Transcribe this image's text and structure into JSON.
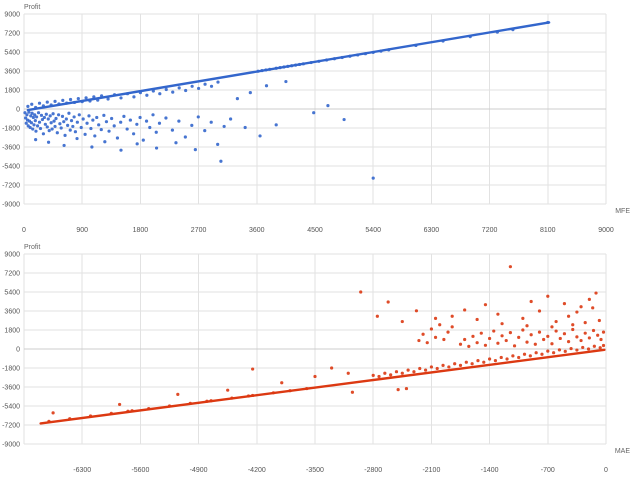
{
  "page": {
    "background": "#ffffff"
  },
  "chart_data": [
    {
      "type": "scatter",
      "title": "Profit",
      "xlabel": "MFE",
      "ylabel": "Profit",
      "color": "#3366cc",
      "grid": true,
      "xlim": [
        0,
        9000
      ],
      "ylim": [
        -9000,
        9000
      ],
      "x_ticks": [
        0,
        900,
        1800,
        2700,
        3600,
        4500,
        5400,
        6300,
        7200,
        8100,
        9000
      ],
      "x_grid_extra": [],
      "y_ticks": [
        9000,
        7200,
        5400,
        3600,
        1800,
        0,
        -1800,
        -3600,
        -5400,
        -7200,
        -9000
      ],
      "trend_line": [
        [
          60,
          -100
        ],
        [
          8120,
          8200
        ]
      ],
      "points": [
        [
          15,
          -350
        ],
        [
          25,
          -850
        ],
        [
          35,
          -1350
        ],
        [
          45,
          -550
        ],
        [
          55,
          -1050
        ],
        [
          65,
          -1600
        ],
        [
          75,
          -300
        ],
        [
          85,
          -1150
        ],
        [
          95,
          -1750
        ],
        [
          105,
          -650
        ],
        [
          115,
          -1300
        ],
        [
          125,
          -400
        ],
        [
          135,
          -1900
        ],
        [
          145,
          -800
        ],
        [
          155,
          -1500
        ],
        [
          165,
          -550
        ],
        [
          175,
          -1100
        ],
        [
          185,
          -2100
        ],
        [
          195,
          -750
        ],
        [
          210,
          -1600
        ],
        [
          225,
          -350
        ],
        [
          240,
          -1250
        ],
        [
          255,
          -1850
        ],
        [
          270,
          -600
        ],
        [
          285,
          -1000
        ],
        [
          300,
          -2350
        ],
        [
          315,
          -800
        ],
        [
          330,
          -1450
        ],
        [
          345,
          -500
        ],
        [
          360,
          -1700
        ],
        [
          375,
          -950
        ],
        [
          390,
          -2050
        ],
        [
          405,
          -650
        ],
        [
          420,
          -1300
        ],
        [
          435,
          -1900
        ],
        [
          450,
          -450
        ],
        [
          465,
          -1150
        ],
        [
          480,
          -1650
        ],
        [
          495,
          -900
        ],
        [
          515,
          -2250
        ],
        [
          535,
          -550
        ],
        [
          555,
          -1400
        ],
        [
          575,
          -1800
        ],
        [
          595,
          -700
        ],
        [
          615,
          -1200
        ],
        [
          635,
          -2500
        ],
        [
          655,
          -950
        ],
        [
          675,
          -1550
        ],
        [
          695,
          -400
        ],
        [
          715,
          -2000
        ],
        [
          735,
          -1100
        ],
        [
          755,
          -1650
        ],
        [
          775,
          -750
        ],
        [
          795,
          -2150
        ],
        [
          825,
          -1250
        ],
        [
          855,
          -550
        ],
        [
          885,
          -1750
        ],
        [
          915,
          -950
        ],
        [
          945,
          -2400
        ],
        [
          975,
          -1350
        ],
        [
          1005,
          -650
        ],
        [
          1035,
          -1850
        ],
        [
          1065,
          -1050
        ],
        [
          1095,
          -2550
        ],
        [
          1125,
          -800
        ],
        [
          1155,
          -1500
        ],
        [
          1195,
          -1950
        ],
        [
          1235,
          -600
        ],
        [
          1275,
          -1200
        ],
        [
          1315,
          -2100
        ],
        [
          1355,
          -900
        ],
        [
          1395,
          -1600
        ],
        [
          1445,
          -2750
        ],
        [
          1495,
          -1250
        ],
        [
          1545,
          -700
        ],
        [
          1595,
          -1900
        ],
        [
          1645,
          -1050
        ],
        [
          1695,
          -2350
        ],
        [
          1745,
          -1450
        ],
        [
          1795,
          -800
        ],
        [
          1845,
          -2950
        ],
        [
          1895,
          -1150
        ],
        [
          1945,
          -1750
        ],
        [
          1995,
          -550
        ],
        [
          2045,
          -2200
        ],
        [
          2095,
          -1350
        ],
        [
          2195,
          -850
        ],
        [
          2295,
          -2000
        ],
        [
          2395,
          -1150
        ],
        [
          2495,
          -2650
        ],
        [
          2595,
          -1550
        ],
        [
          2695,
          -750
        ],
        [
          2795,
          -2050
        ],
        [
          2895,
          -1250
        ],
        [
          2995,
          -3350
        ],
        [
          3045,
          -4950
        ],
        [
          3095,
          -1650
        ],
        [
          3195,
          -950
        ],
        [
          60,
          250
        ],
        [
          120,
          450
        ],
        [
          180,
          150
        ],
        [
          240,
          550
        ],
        [
          300,
          300
        ],
        [
          360,
          650
        ],
        [
          420,
          380
        ],
        [
          480,
          720
        ],
        [
          540,
          480
        ],
        [
          600,
          820
        ],
        [
          660,
          560
        ],
        [
          720,
          900
        ],
        [
          780,
          620
        ],
        [
          840,
          980
        ],
        [
          900,
          700
        ],
        [
          960,
          1060
        ],
        [
          1020,
          760
        ],
        [
          1080,
          1150
        ],
        [
          1140,
          840
        ],
        [
          1200,
          1250
        ],
        [
          1300,
          950
        ],
        [
          1400,
          1350
        ],
        [
          1500,
          1050
        ],
        [
          1600,
          1450
        ],
        [
          1700,
          1150
        ],
        [
          1800,
          1550
        ],
        [
          1900,
          1300
        ],
        [
          2000,
          1700
        ],
        [
          2100,
          1450
        ],
        [
          2200,
          1850
        ],
        [
          2300,
          1600
        ],
        [
          2400,
          2000
        ],
        [
          2500,
          1750
        ],
        [
          2600,
          2150
        ],
        [
          2700,
          1950
        ],
        [
          2800,
          2350
        ],
        [
          2900,
          2150
        ],
        [
          3000,
          2550
        ],
        [
          180,
          -2900
        ],
        [
          380,
          -3150
        ],
        [
          620,
          -3450
        ],
        [
          820,
          -2800
        ],
        [
          1050,
          -3600
        ],
        [
          1250,
          -3100
        ],
        [
          1500,
          -3900
        ],
        [
          1750,
          -3300
        ],
        [
          2050,
          -3700
        ],
        [
          2350,
          -3200
        ],
        [
          2650,
          -3850
        ],
        [
          3420,
          -1750
        ],
        [
          3650,
          -2550
        ],
        [
          3900,
          -1500
        ],
        [
          4480,
          -350
        ],
        [
          4700,
          320
        ],
        [
          4950,
          -1000
        ],
        [
          5400,
          -6550
        ],
        [
          3300,
          980
        ],
        [
          3500,
          1550
        ],
        [
          3750,
          2200
        ],
        [
          4050,
          2600
        ],
        [
          3620,
          3580
        ],
        [
          3680,
          3640
        ],
        [
          3740,
          3700
        ],
        [
          3800,
          3760
        ],
        [
          3900,
          3860
        ],
        [
          3960,
          3920
        ],
        [
          4020,
          3980
        ],
        [
          4080,
          4040
        ],
        [
          4140,
          4100
        ],
        [
          4200,
          4160
        ],
        [
          4260,
          4220
        ],
        [
          4320,
          4280
        ],
        [
          4440,
          4400
        ],
        [
          4560,
          4520
        ],
        [
          4680,
          4640
        ],
        [
          4800,
          4760
        ],
        [
          4920,
          4880
        ],
        [
          5040,
          5000
        ],
        [
          5160,
          5120
        ],
        [
          5280,
          5240
        ],
        [
          5400,
          5360
        ],
        [
          5520,
          5480
        ],
        [
          5640,
          5600
        ],
        [
          6060,
          6020
        ],
        [
          6480,
          6440
        ],
        [
          6900,
          6860
        ],
        [
          7320,
          7280
        ],
        [
          7560,
          7520
        ],
        [
          8100,
          8200
        ]
      ]
    },
    {
      "type": "scatter",
      "title": "Profit",
      "xlabel": "MAE",
      "ylabel": "Profit",
      "color": "#dc3912",
      "grid": true,
      "xlim": [
        -7000,
        0
      ],
      "ylim": [
        -9000,
        9000
      ],
      "x_ticks": [
        -6300,
        -5600,
        -4900,
        -4200,
        -3500,
        -2800,
        -2100,
        -1400,
        -700,
        0
      ],
      "x_grid_extra": [
        -7000
      ],
      "y_ticks": [
        9000,
        7200,
        5400,
        3600,
        1800,
        0,
        -1800,
        -3600,
        -5400,
        -7200,
        -9000
      ],
      "trend_line": [
        [
          -6800,
          -7050
        ],
        [
          -20,
          -80
        ]
      ],
      "points": [
        [
          -6700,
          -6850
        ],
        [
          -6450,
          -6600
        ],
        [
          -6200,
          -6350
        ],
        [
          -5950,
          -6100
        ],
        [
          -5750,
          -5900
        ],
        [
          -5700,
          -5850
        ],
        [
          -5500,
          -5650
        ],
        [
          -5250,
          -5400
        ],
        [
          -5000,
          -5150
        ],
        [
          -4800,
          -4950
        ],
        [
          -4750,
          -4900
        ],
        [
          -4500,
          -4650
        ],
        [
          -4300,
          -4450
        ],
        [
          -4250,
          -4400
        ],
        [
          -4000,
          -4150
        ],
        [
          -3800,
          -3950
        ],
        [
          -3600,
          -3750
        ],
        [
          -6650,
          -6050
        ],
        [
          -5850,
          -5250
        ],
        [
          -5150,
          -4300
        ],
        [
          -4550,
          -3900
        ],
        [
          -4250,
          -1900
        ],
        [
          -3900,
          -3200
        ],
        [
          -3500,
          -2600
        ],
        [
          -3300,
          -1800
        ],
        [
          -3100,
          -2300
        ],
        [
          -2500,
          -3850
        ],
        [
          -2400,
          -3750
        ],
        [
          -3050,
          -4100
        ],
        [
          -2800,
          -2500
        ],
        [
          -2730,
          -2600
        ],
        [
          -2660,
          -2300
        ],
        [
          -2590,
          -2450
        ],
        [
          -2520,
          -2150
        ],
        [
          -2450,
          -2300
        ],
        [
          -2380,
          -2000
        ],
        [
          -2310,
          -2150
        ],
        [
          -2240,
          -1850
        ],
        [
          -2170,
          -2000
        ],
        [
          -2100,
          -1700
        ],
        [
          -2030,
          -1850
        ],
        [
          -1960,
          -1550
        ],
        [
          -1890,
          -1700
        ],
        [
          -1820,
          -1400
        ],
        [
          -1750,
          -1550
        ],
        [
          -1680,
          -1250
        ],
        [
          -1610,
          -1400
        ],
        [
          -1540,
          -1100
        ],
        [
          -1470,
          -1250
        ],
        [
          -1400,
          -950
        ],
        [
          -1330,
          -1100
        ],
        [
          -1260,
          -800
        ],
        [
          -1190,
          -950
        ],
        [
          -1120,
          -650
        ],
        [
          -1050,
          -800
        ],
        [
          -980,
          -500
        ],
        [
          -910,
          -650
        ],
        [
          -840,
          -350
        ],
        [
          -770,
          -500
        ],
        [
          -700,
          -200
        ],
        [
          -630,
          -350
        ],
        [
          -560,
          -80
        ],
        [
          -490,
          -220
        ],
        [
          -420,
          40
        ],
        [
          -350,
          -100
        ],
        [
          -280,
          150
        ],
        [
          -210,
          0
        ],
        [
          -140,
          260
        ],
        [
          -70,
          120
        ],
        [
          -30,
          330
        ],
        [
          -1750,
          450
        ],
        [
          -1700,
          900
        ],
        [
          -1650,
          250
        ],
        [
          -1600,
          1200
        ],
        [
          -1550,
          600
        ],
        [
          -1500,
          1500
        ],
        [
          -1450,
          350
        ],
        [
          -1400,
          1000
        ],
        [
          -1350,
          1700
        ],
        [
          -1300,
          550
        ],
        [
          -1250,
          1250
        ],
        [
          -1200,
          800
        ],
        [
          -1150,
          1550
        ],
        [
          -1100,
          300
        ],
        [
          -1050,
          1100
        ],
        [
          -1000,
          1800
        ],
        [
          -950,
          650
        ],
        [
          -900,
          1350
        ],
        [
          -850,
          450
        ],
        [
          -800,
          1600
        ],
        [
          -750,
          900
        ],
        [
          -700,
          1200
        ],
        [
          -650,
          500
        ],
        [
          -600,
          1700
        ],
        [
          -550,
          1000
        ],
        [
          -500,
          1450
        ],
        [
          -450,
          700
        ],
        [
          -400,
          1850
        ],
        [
          -350,
          1150
        ],
        [
          -300,
          800
        ],
        [
          -250,
          1500
        ],
        [
          -200,
          1050
        ],
        [
          -150,
          1750
        ],
        [
          -100,
          1300
        ],
        [
          -60,
          900
        ],
        [
          -30,
          1600
        ],
        [
          -2250,
          800
        ],
        [
          -2200,
          1400
        ],
        [
          -2150,
          600
        ],
        [
          -2100,
          1900
        ],
        [
          -2050,
          1100
        ],
        [
          -2000,
          2300
        ],
        [
          -1950,
          900
        ],
        [
          -1900,
          1600
        ],
        [
          -1850,
          2100
        ],
        [
          -2950,
          5400
        ],
        [
          -2620,
          4450
        ],
        [
          -2280,
          3620
        ],
        [
          -1150,
          7800
        ],
        [
          -1850,
          3100
        ],
        [
          -1550,
          2800
        ],
        [
          -1300,
          3300
        ],
        [
          -1000,
          2900
        ],
        [
          -800,
          3600
        ],
        [
          -600,
          2600
        ],
        [
          -450,
          3100
        ],
        [
          -300,
          4000
        ],
        [
          -200,
          4700
        ],
        [
          -120,
          5300
        ],
        [
          -80,
          2700
        ],
        [
          -1450,
          4200
        ],
        [
          -1700,
          3700
        ],
        [
          -2050,
          2900
        ],
        [
          -900,
          4500
        ],
        [
          -700,
          5000
        ],
        [
          -500,
          4300
        ],
        [
          -350,
          3500
        ],
        [
          -250,
          2500
        ],
        [
          -160,
          3900
        ],
        [
          -1250,
          2400
        ],
        [
          -950,
          2200
        ],
        [
          -650,
          2100
        ],
        [
          -400,
          2300
        ],
        [
          -2450,
          2600
        ],
        [
          -2750,
          3100
        ]
      ]
    }
  ]
}
